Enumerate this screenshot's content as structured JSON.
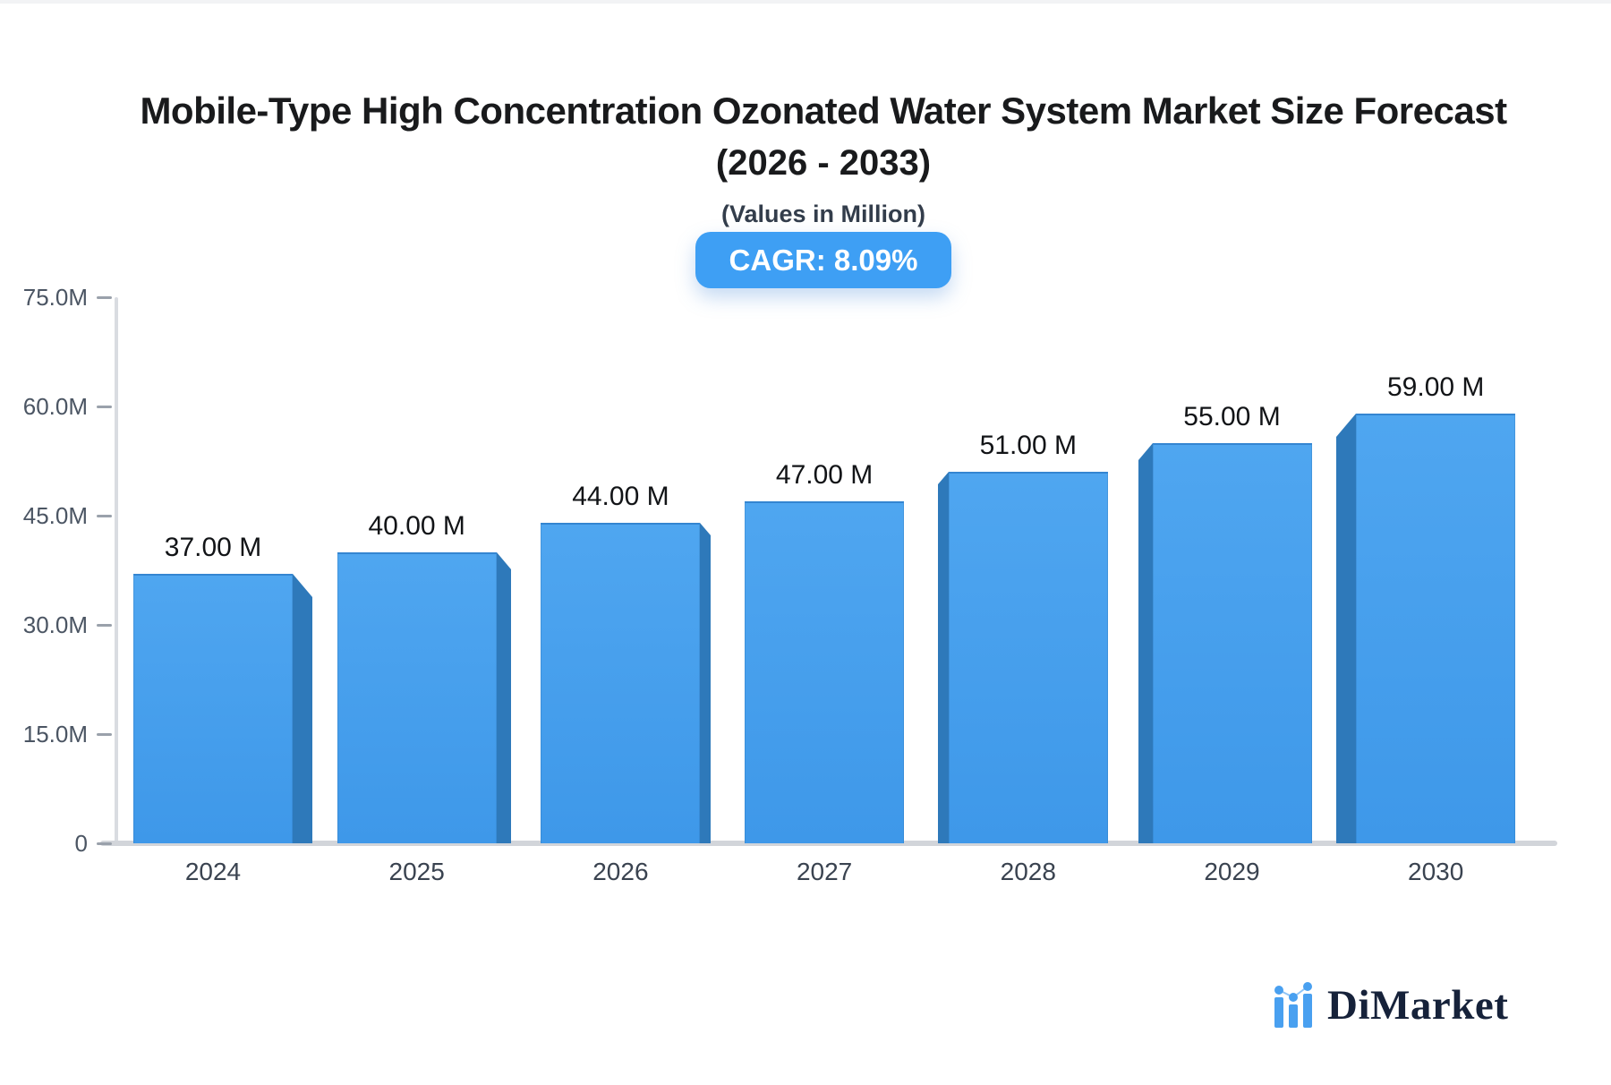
{
  "header": {
    "title_line1": "Mobile-Type High Concentration Ozonated Water System Market Size Forecast",
    "title_line2": "(2026 - 2033)",
    "values_note": "(Values in Million)",
    "cagr_badge": "CAGR: 8.09%"
  },
  "chart_data": {
    "type": "bar",
    "title": "Mobile-Type High Concentration Ozonated Water System Market Size Forecast (2026 - 2033)",
    "subtitle": "(Values in Million)",
    "cagr": "8.09%",
    "categories": [
      "2024",
      "2025",
      "2026",
      "2027",
      "2028",
      "2029",
      "2030"
    ],
    "values": [
      37,
      40,
      44,
      47,
      51,
      55,
      59
    ],
    "value_labels": [
      "37.00 M",
      "40.00 M",
      "44.00 M",
      "47.00 M",
      "51.00 M",
      "55.00 M",
      "59.00 M"
    ],
    "unit": "Million",
    "ylim": [
      0,
      75
    ],
    "yticks": [
      {
        "label": "75.0M",
        "value": 75
      },
      {
        "label": "60.0M",
        "value": 60
      },
      {
        "label": "45.0M",
        "value": 45
      },
      {
        "label": "30.0M",
        "value": 30
      },
      {
        "label": "15.0M",
        "value": 15
      },
      {
        "label": "0",
        "value": 0
      }
    ],
    "grid": "off",
    "legend": "none",
    "colors": {
      "bar_front_top": "#4fa6f0",
      "bar_front_bottom": "#3e98e9",
      "bar_side": "#2e79ba",
      "badge_background": "#3e9ff4",
      "badge_text": "#ffffff",
      "axis_line": "#d9dce1",
      "tick_label": "#4b5563",
      "value_label": "#121417",
      "title_text": "#191a1c"
    }
  },
  "branding": {
    "logo_text": "DiMarket",
    "logo_icon": "mini-bar-chart-with-dots",
    "logo_blue": "#49a0f0"
  }
}
